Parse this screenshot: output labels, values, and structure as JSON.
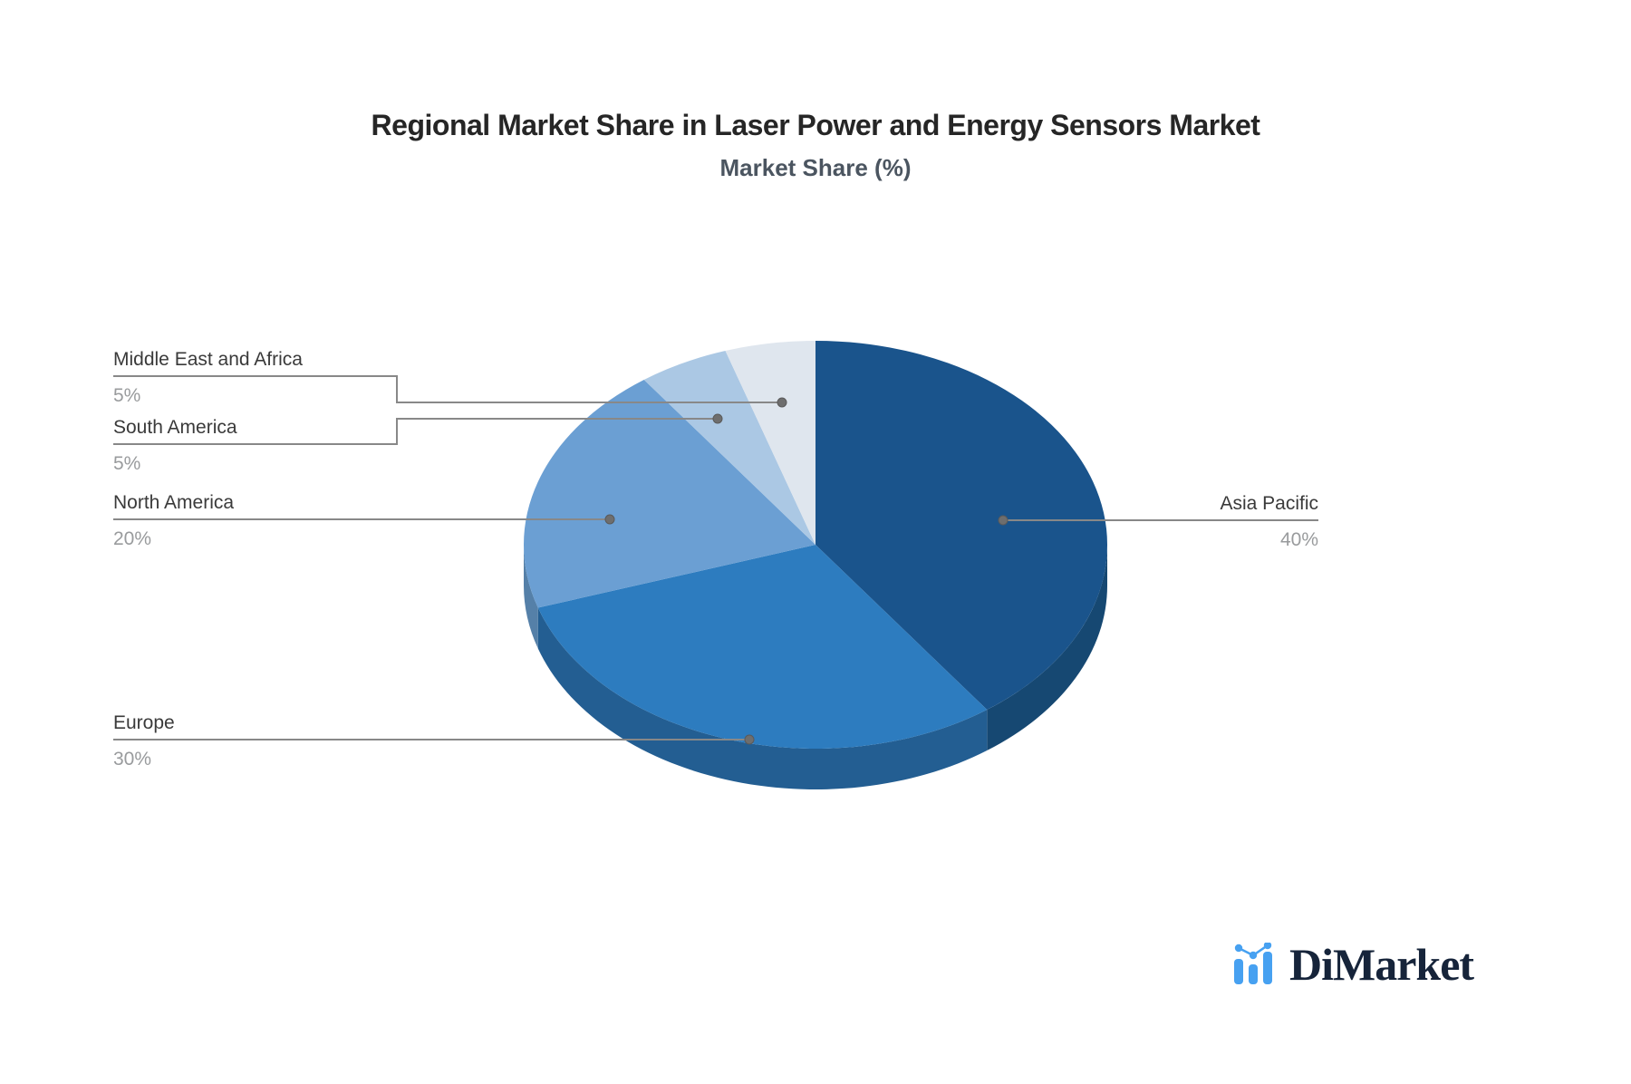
{
  "page": {
    "background": "#ffffff"
  },
  "header": {
    "title": "Regional Market Share in Laser Power and Energy Sensors Market",
    "subtitle": "Market Share (%)"
  },
  "chart_data": {
    "type": "pie",
    "title": "Regional Market Share in Laser Power and Energy Sensors Market",
    "subtitle": "Market Share (%)",
    "unit": "%",
    "effect": "3d",
    "direction": "clockwise",
    "start_angle_deg": 0,
    "legend_position": "callout-labels",
    "slices": [
      {
        "label": "Asia Pacific",
        "value": 40,
        "pct_label": "40%",
        "color": "#1a548c",
        "side_color": "#164872"
      },
      {
        "label": "Europe",
        "value": 30,
        "pct_label": "30%",
        "color": "#2d7cbf",
        "side_color": "#235e92"
      },
      {
        "label": "North America",
        "value": 20,
        "pct_label": "20%",
        "color": "#6b9fd3",
        "side_color": "#5580a8"
      },
      {
        "label": "South America",
        "value": 5,
        "pct_label": "5%",
        "color": "#abc8e4",
        "side_color": "#8aa6c2"
      },
      {
        "label": "Middle East and Africa",
        "value": 5,
        "pct_label": "5%",
        "color": "#dfe6ee",
        "side_color": "#b8c2ce"
      }
    ],
    "callout_style": {
      "line_color": "#888888",
      "dot_color": "#6e6e6e",
      "label_color": "#3a3a3a",
      "pct_color": "#999b9d"
    }
  },
  "logo": {
    "brand": "DiMarket",
    "icon": "bar-chart-with-trend-icon",
    "icon_color": "#47a1f1",
    "text_color": "#16243a"
  }
}
